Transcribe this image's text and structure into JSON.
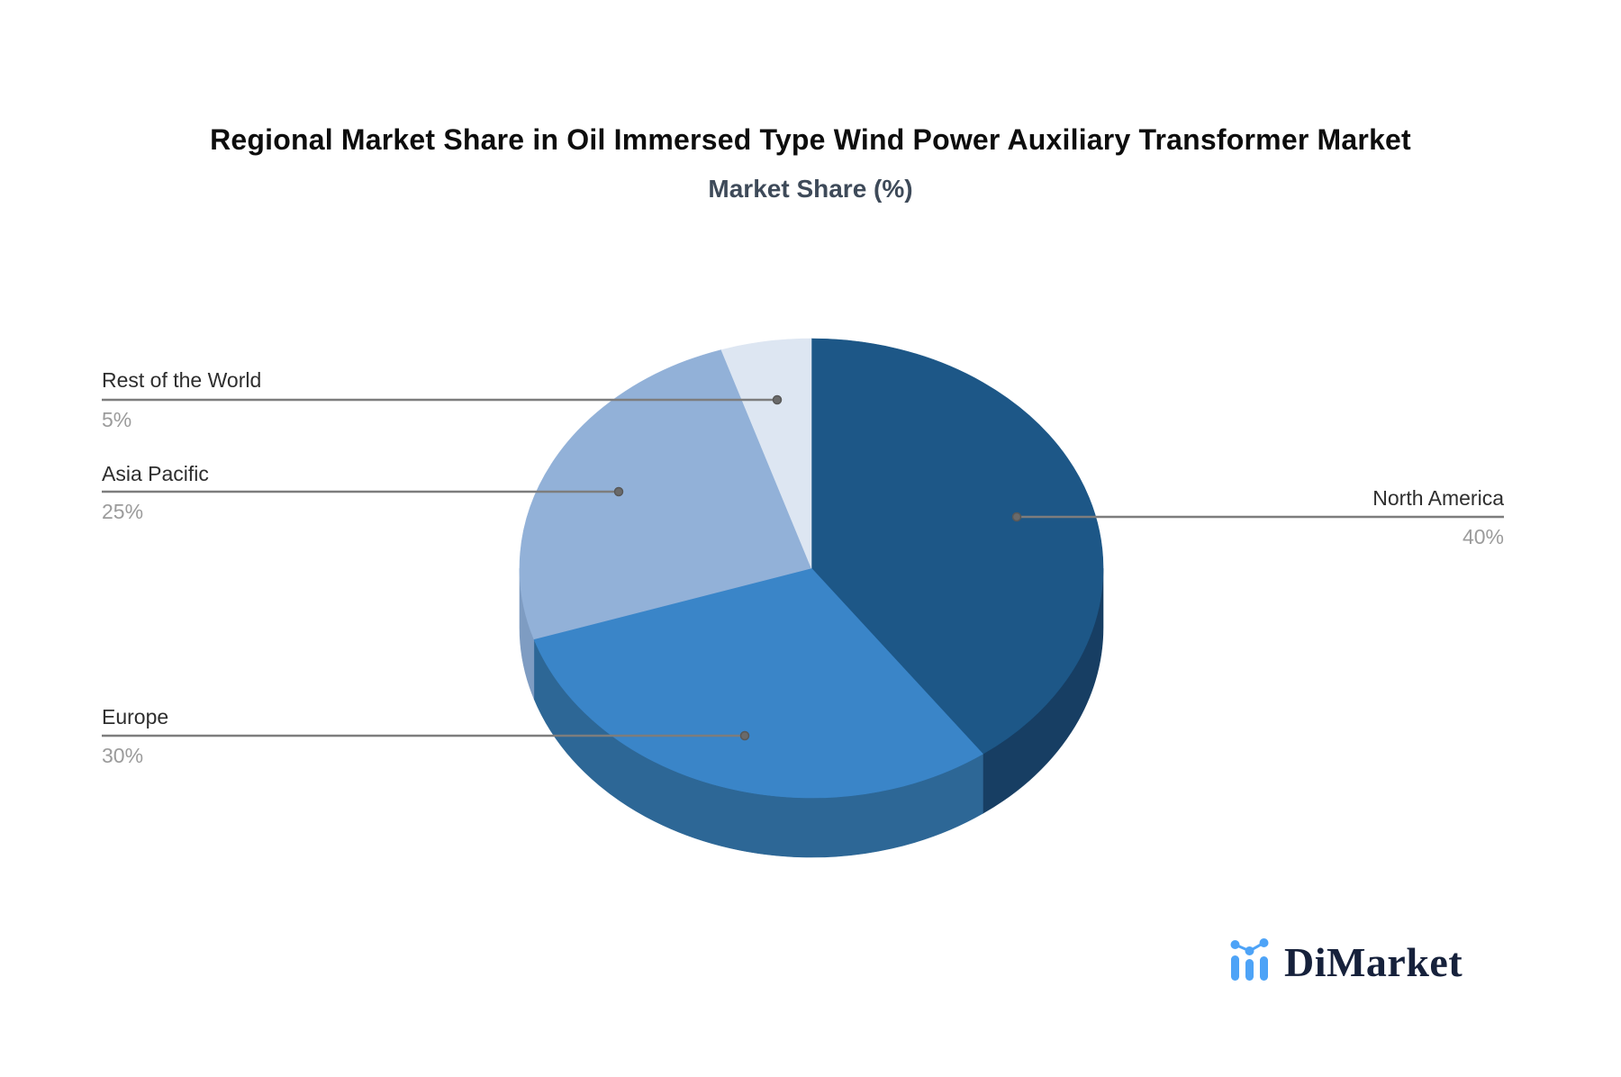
{
  "brand": {
    "name": "DiMarket",
    "icon": "bar-line-chart-icon",
    "accent_color": "#4DA3F7",
    "text_color": "#16213B"
  },
  "chart_data": {
    "type": "pie",
    "title": "Regional Market Share in Oil Immersed Type Wind Power Auxiliary Transformer Market",
    "subtitle": "Market Share (%)",
    "unit": "%",
    "direction": "clockwise",
    "start_angle_deg": 0,
    "effect_3d": true,
    "legend_position": "callout-labels",
    "leader_line_color": "#7D7D7D",
    "label_name_color": "#2E2E2E",
    "label_value_color": "#9B9B9B",
    "slices": [
      {
        "label": "North America",
        "value": 40,
        "pct_label": "40%",
        "color": "#1D5787",
        "side_color": "#173E63",
        "callout_side": "right"
      },
      {
        "label": "Europe",
        "value": 30,
        "pct_label": "30%",
        "color": "#3A85C8",
        "side_color": "#2D6796",
        "callout_side": "left"
      },
      {
        "label": "Asia Pacific",
        "value": 25,
        "pct_label": "25%",
        "color": "#92B1D8",
        "side_color": "#7E9CC2",
        "callout_side": "left"
      },
      {
        "label": "Rest of the World",
        "value": 5,
        "pct_label": "5%",
        "color": "#DDE6F2",
        "side_color": "#C9D6E8",
        "callout_side": "left"
      }
    ]
  }
}
